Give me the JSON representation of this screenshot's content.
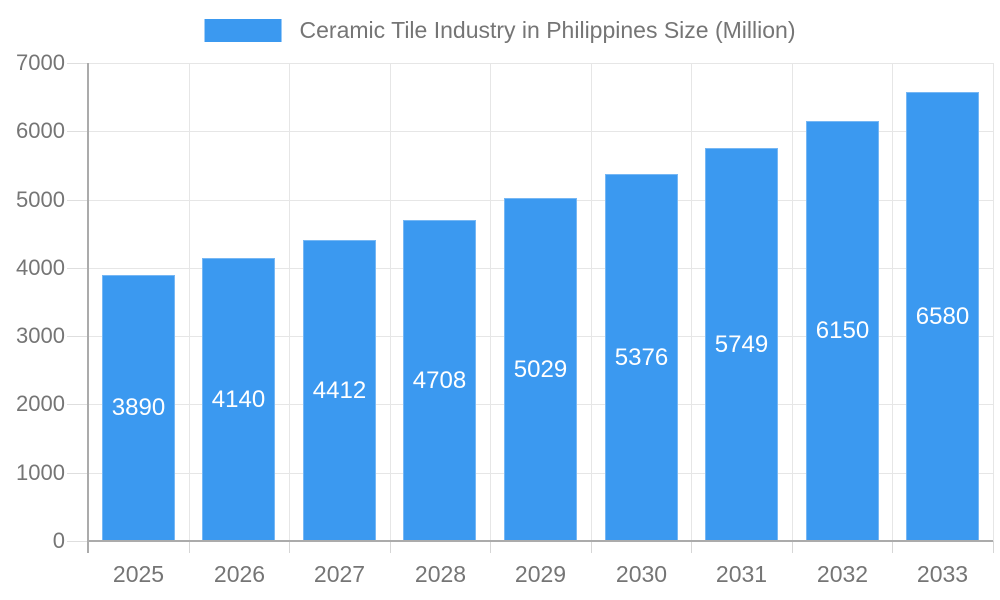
{
  "chart_data": {
    "type": "bar",
    "title": "Ceramic Tile Industry in Philippines Size (Million)",
    "legend": {
      "label": "Ceramic Tile Industry in Philippines Size (Million)",
      "position": "top-center"
    },
    "categories": [
      "2025",
      "2026",
      "2027",
      "2028",
      "2029",
      "2030",
      "2031",
      "2032",
      "2033"
    ],
    "values": [
      3890,
      4140,
      4412,
      4708,
      5029,
      5376,
      5749,
      6150,
      6580
    ],
    "xlabel": "",
    "ylabel": "",
    "ylim": [
      0,
      7000
    ],
    "yticks": [
      0,
      1000,
      2000,
      3000,
      4000,
      5000,
      6000,
      7000
    ],
    "grid": true,
    "legend_position": "top-center",
    "colors": {
      "bar": "#3b99f0",
      "value_label": "#ffffff",
      "axis_text": "#757575",
      "gridline": "#e6e6e6",
      "axis_line": "#ababab"
    }
  }
}
